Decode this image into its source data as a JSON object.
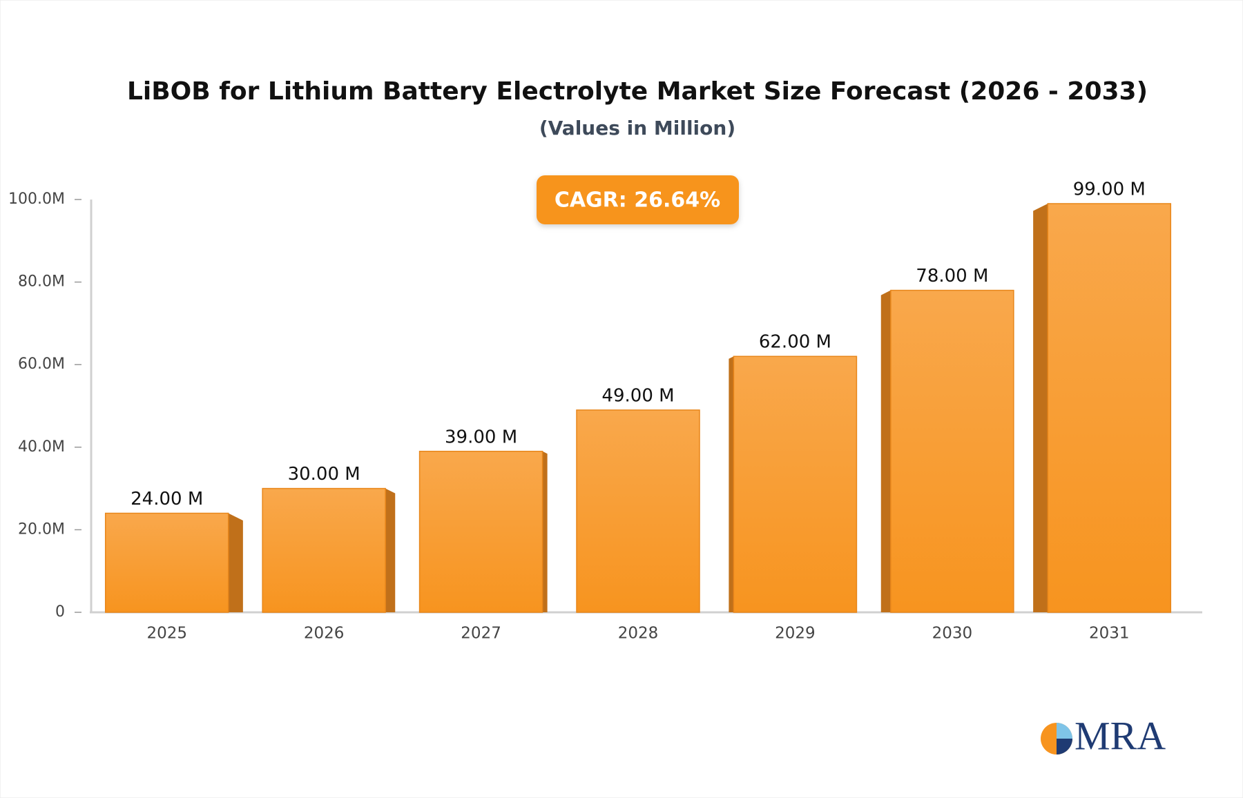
{
  "chart_data": {
    "type": "bar",
    "title": "LiBOB for Lithium Battery Electrolyte Market Size Forecast (2026 - 2033)",
    "subtitle": "(Values in Million)",
    "annotation": "CAGR: 26.64%",
    "categories": [
      "2025",
      "2026",
      "2027",
      "2028",
      "2029",
      "2030",
      "2031"
    ],
    "values": [
      24,
      30,
      39,
      49,
      62,
      78,
      99
    ],
    "value_labels": [
      "24.00 M",
      "30.00 M",
      "39.00 M",
      "49.00 M",
      "62.00 M",
      "78.00 M",
      "99.00 M"
    ],
    "color": "#f7962a",
    "ylim": [
      0,
      100
    ],
    "yticks": [
      0,
      {
        "value": 20,
        "label": "20.0M"
      },
      {
        "value": 40,
        "label": "40.0M"
      },
      {
        "value": 60,
        "label": "60.0M"
      },
      {
        "value": 80,
        "label": "80.0M"
      },
      {
        "value": 100,
        "label": "100.0M"
      }
    ],
    "grid": false
  },
  "logo": "MRA"
}
